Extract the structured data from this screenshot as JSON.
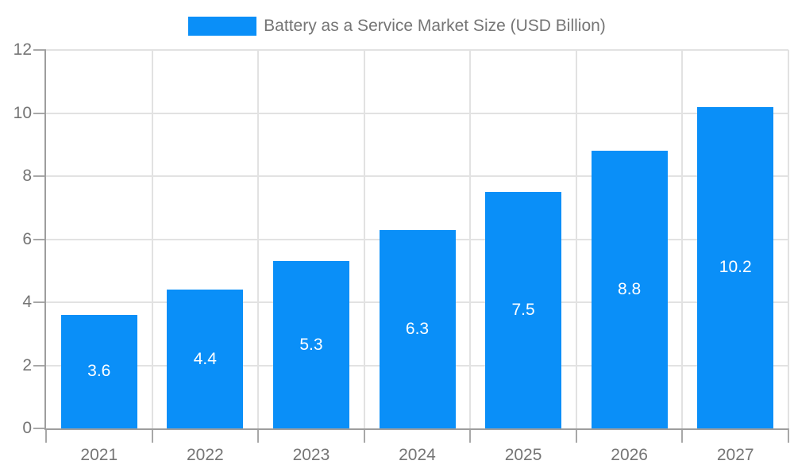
{
  "chart_data": {
    "type": "bar",
    "title": "Battery as a Service Market Size (USD Billion)",
    "categories": [
      "2021",
      "2022",
      "2023",
      "2024",
      "2025",
      "2026",
      "2027"
    ],
    "values": [
      3.6,
      4.4,
      5.3,
      6.3,
      7.5,
      8.8,
      10.2
    ],
    "value_labels": [
      "3.6",
      "4.4",
      "5.3",
      "6.3",
      "7.5",
      "8.8",
      "10.2"
    ],
    "xlabel": "",
    "ylabel": "",
    "ylim": [
      0,
      12
    ],
    "yticks": [
      0,
      2,
      4,
      6,
      8,
      10,
      12
    ],
    "grid": true,
    "legend_position": "top-center",
    "colors": {
      "bar": "#0a8ff8",
      "grid": "#e2e2e2",
      "axis": "#9e9e9e",
      "tick_label": "#757575",
      "value_label": "#ffffff",
      "background": "#ffffff"
    }
  }
}
